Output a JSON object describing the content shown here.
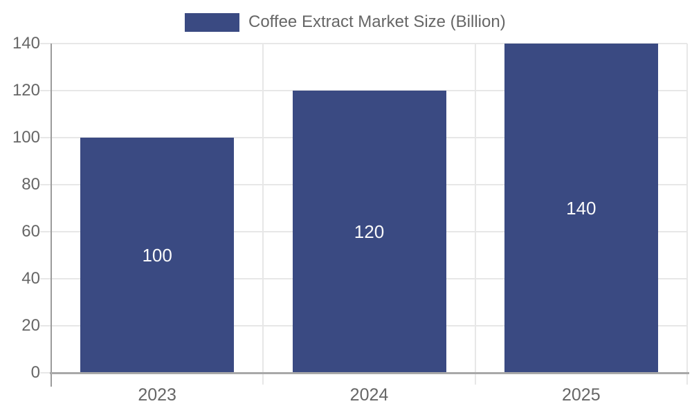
{
  "chart_data": {
    "type": "bar",
    "title": "Coffee Extract Market Size (Billion)",
    "categories": [
      "2023",
      "2024",
      "2025"
    ],
    "series": [
      {
        "name": "Coffee Extract Market Size (Billion)",
        "values": [
          100,
          120,
          140
        ]
      }
    ],
    "data_labels": [
      "100",
      "120",
      "140"
    ],
    "xlabel": "",
    "ylabel": "",
    "ylim": [
      0,
      140
    ],
    "ytick_step": 20,
    "ytick_labels": [
      "0",
      "20",
      "40",
      "60",
      "80",
      "100",
      "120",
      "140"
    ],
    "grid": true,
    "legend_position": "top-center",
    "colors": {
      "bar": "#3A4A82",
      "axis_text": "#666666",
      "data_label_text": "#FAFAFA",
      "grid_line": "#E7E7E7",
      "axis_line": "#A8A8A8",
      "background": "#FFFFFF"
    }
  },
  "legend": {
    "items": [
      {
        "label": "Coffee Extract Market Size (Billion)",
        "swatch_color": "#3A4A82"
      }
    ]
  }
}
